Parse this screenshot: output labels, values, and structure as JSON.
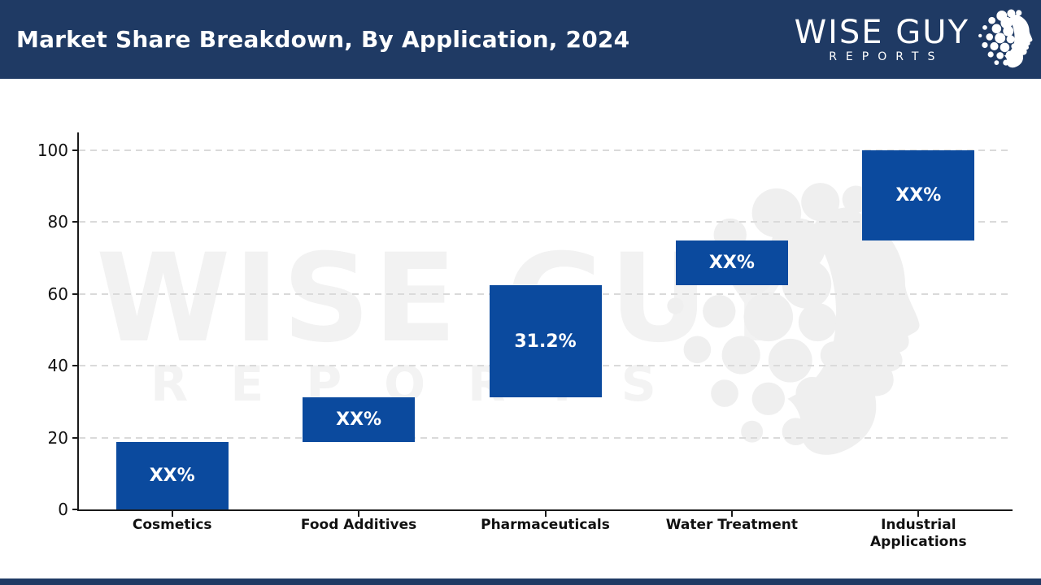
{
  "header": {
    "title": "Market Share Breakdown, By Application, 2024",
    "bg_color": "#1f3a64",
    "logo": {
      "line1": "WISE GUY",
      "line2": "REPORTS"
    }
  },
  "watermark": {
    "line1": "WISE GUY",
    "line2": "REPORTS"
  },
  "chart_data": {
    "type": "bar",
    "subtype": "waterfall",
    "title": "Market Share Breakdown, By Application, 2024",
    "categories": [
      "Cosmetics",
      "Food Additives",
      "Pharmaceuticals",
      "Water Treatment",
      "Industrial Applications"
    ],
    "segments": [
      {
        "category": "Cosmetics",
        "start": 0,
        "end": 18.8,
        "label": "XX%"
      },
      {
        "category": "Food Additives",
        "start": 18.8,
        "end": 31.2,
        "label": "XX%"
      },
      {
        "category": "Pharmaceuticals",
        "start": 31.2,
        "end": 62.4,
        "label": "31.2%"
      },
      {
        "category": "Water Treatment",
        "start": 62.4,
        "end": 74.8,
        "label": "XX%"
      },
      {
        "category": "Industrial Applications",
        "start": 74.8,
        "end": 100,
        "label": "XX%"
      }
    ],
    "xlabel": "",
    "ylabel": "",
    "ylim": [
      0,
      105
    ],
    "yticks": [
      0,
      20,
      40,
      60,
      80,
      100
    ],
    "grid": "dashed-horizontal",
    "legend": "none",
    "bar_color": "#0b4a9e",
    "bar_label_color": "#ffffff"
  },
  "footer": {
    "bg_color": "#1f3a64"
  }
}
